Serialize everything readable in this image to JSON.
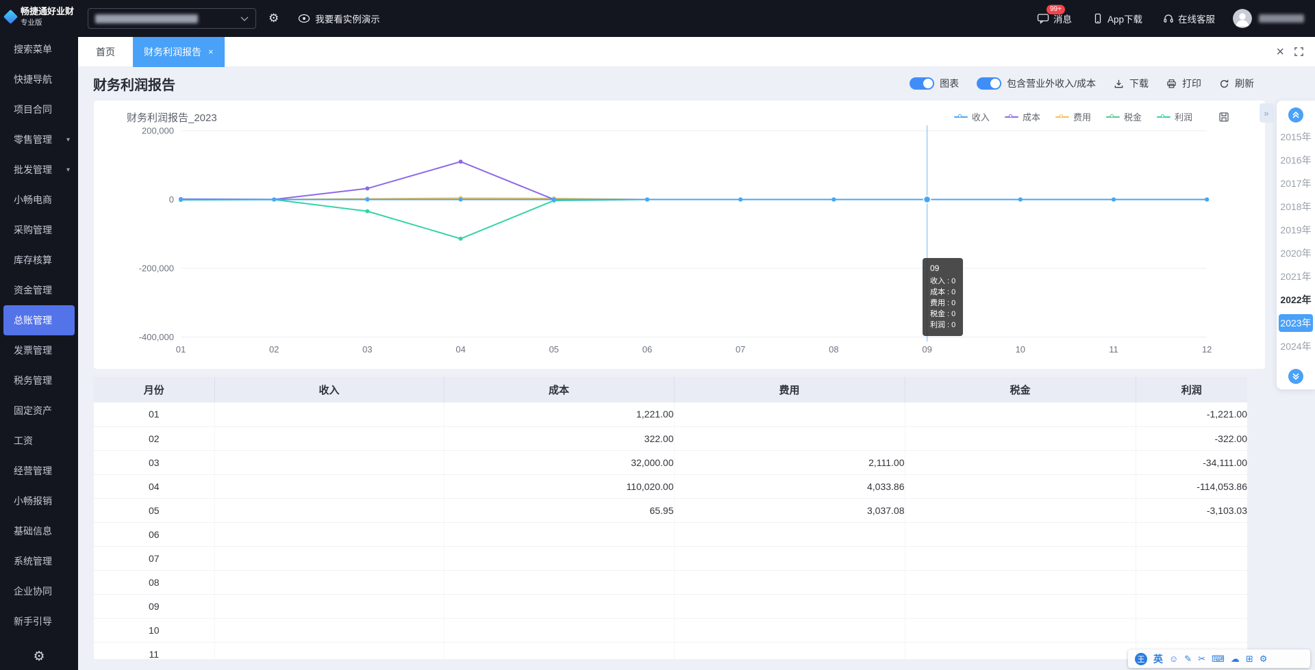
{
  "app": {
    "logo_title": "畅捷通好业财",
    "logo_subtitle": "专业版"
  },
  "icons": {
    "close": "×",
    "caret_down": "▾",
    "collapse_right": "»",
    "gear": "⚙"
  },
  "sidebar": {
    "items": [
      {
        "label": "搜索菜单"
      },
      {
        "label": "快捷导航"
      },
      {
        "label": "项目合同"
      },
      {
        "label": "零售管理",
        "caret": true
      },
      {
        "label": "批发管理",
        "caret": true
      },
      {
        "label": "小畅电商"
      },
      {
        "label": "采购管理"
      },
      {
        "label": "库存核算"
      },
      {
        "label": "资金管理"
      },
      {
        "label": "总账管理",
        "active": true
      },
      {
        "label": "发票管理"
      },
      {
        "label": "税务管理"
      },
      {
        "label": "固定资产"
      },
      {
        "label": "工资"
      },
      {
        "label": "经营管理"
      },
      {
        "label": "小畅报销"
      },
      {
        "label": "基础信息"
      },
      {
        "label": "系统管理"
      },
      {
        "label": "企业协同"
      },
      {
        "label": "新手引导"
      }
    ]
  },
  "topbar": {
    "demo_label": "我要看实例演示",
    "messages_label": "消息",
    "messages_badge": "99+",
    "app_download_label": "App下载",
    "support_label": "在线客服"
  },
  "tabs": [
    {
      "label": "首页"
    },
    {
      "label": "财务利润报告",
      "close": "×",
      "active": true
    }
  ],
  "page": {
    "title": "财务利润报告",
    "toggle_chart_label": "图表",
    "toggle_include_label": "包含营业外收入/成本",
    "download_label": "下载",
    "print_label": "打印",
    "refresh_label": "刷新"
  },
  "chart_data": {
    "type": "line",
    "title": "财务利润报告_2023",
    "x": [
      "01",
      "02",
      "03",
      "04",
      "05",
      "06",
      "07",
      "08",
      "09",
      "10",
      "11",
      "12"
    ],
    "series": [
      {
        "name": "收入",
        "color": "#46a6f7",
        "values": [
          0,
          0,
          0,
          0,
          0,
          0,
          0,
          0,
          0,
          0,
          0,
          0
        ]
      },
      {
        "name": "成本",
        "color": "#8d68e8",
        "values": [
          1221,
          322,
          32000,
          110020,
          65.95,
          0,
          0,
          0,
          0,
          0,
          0,
          0
        ]
      },
      {
        "name": "费用",
        "color": "#f3c14e",
        "values": [
          0,
          0,
          2111,
          4033.86,
          3037.08,
          0,
          0,
          0,
          0,
          0,
          0,
          0
        ]
      },
      {
        "name": "税金",
        "color": "#4ecb8c",
        "values": [
          0,
          0,
          0,
          0,
          0,
          0,
          0,
          0,
          0,
          0,
          0,
          0
        ]
      },
      {
        "name": "利润",
        "color": "#33d3a6",
        "values": [
          -1221,
          -322,
          -34111,
          -114053.86,
          -3103.03,
          0,
          0,
          0,
          0,
          0,
          0,
          0
        ]
      }
    ],
    "y_ticks": [
      {
        "label": "200,000",
        "value": 200000
      },
      {
        "label": "0",
        "value": 0
      },
      {
        "label": "-200,000",
        "value": -200000
      },
      {
        "label": "-400,000",
        "value": -400000
      }
    ],
    "ylim": [
      -400000,
      200000
    ],
    "grid": true,
    "legend_position": "top-right",
    "hover": {
      "x_index": 8,
      "x_label": "09",
      "lines": [
        "收入 : 0",
        "成本 : 0",
        "费用 : 0",
        "税金 : 0",
        "利润 : 0"
      ]
    }
  },
  "year_panel": {
    "years": [
      {
        "label": "2015年"
      },
      {
        "label": "2016年"
      },
      {
        "label": "2017年"
      },
      {
        "label": "2018年"
      },
      {
        "label": "2019年"
      },
      {
        "label": "2020年"
      },
      {
        "label": "2021年"
      },
      {
        "label": "2022年",
        "emphasis": true
      },
      {
        "label": "2023年",
        "selected": true
      },
      {
        "label": "2024年"
      }
    ]
  },
  "table": {
    "headers": [
      "月份",
      "收入",
      "成本",
      "费用",
      "税金",
      "利润"
    ],
    "rows": [
      [
        "01",
        "",
        "1,221.00",
        "",
        "",
        "-1,221.00"
      ],
      [
        "02",
        "",
        "322.00",
        "",
        "",
        "-322.00"
      ],
      [
        "03",
        "",
        "32,000.00",
        "2,111.00",
        "",
        "-34,111.00"
      ],
      [
        "04",
        "",
        "110,020.00",
        "4,033.86",
        "",
        "-114,053.86"
      ],
      [
        "05",
        "",
        "65.95",
        "3,037.08",
        "",
        "-3,103.03"
      ],
      [
        "06",
        "",
        "",
        "",
        "",
        ""
      ],
      [
        "07",
        "",
        "",
        "",
        "",
        ""
      ],
      [
        "08",
        "",
        "",
        "",
        "",
        ""
      ],
      [
        "09",
        "",
        "",
        "",
        "",
        ""
      ],
      [
        "10",
        "",
        "",
        "",
        "",
        ""
      ],
      [
        "11",
        "",
        "",
        "",
        "",
        ""
      ]
    ]
  },
  "ime": {
    "primary": "王",
    "secondary": "英",
    "icons": [
      {
        "name": "emoji-icon",
        "glyph": "☺"
      },
      {
        "name": "pencil-icon",
        "glyph": "✎"
      },
      {
        "name": "scissors-icon",
        "glyph": "✂"
      },
      {
        "name": "keyboard-icon",
        "glyph": "⌨"
      },
      {
        "name": "cloud-icon",
        "glyph": "☁"
      },
      {
        "name": "grid-icon",
        "glyph": "⊞"
      },
      {
        "name": "gear-icon",
        "glyph": "⚙"
      }
    ]
  },
  "colors": {
    "accent_blue": "#49a1f8",
    "sidebar_active": "#5373e8",
    "toggle_on": "#3f8ef8",
    "badge_red": "#f5434a"
  }
}
